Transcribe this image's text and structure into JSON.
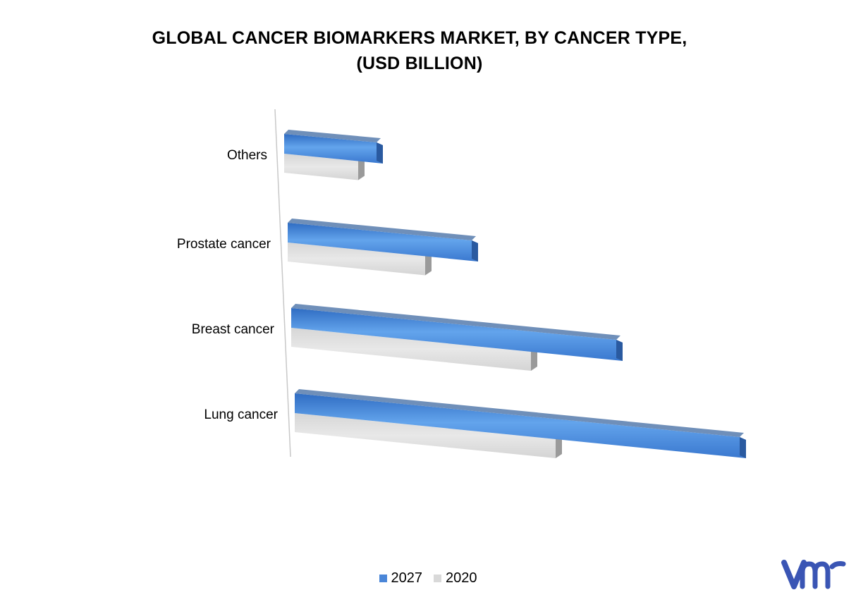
{
  "chart_data": {
    "type": "bar",
    "orientation": "horizontal",
    "title": "GLOBAL CANCER BIOMARKERS MARKET, BY CANCER TYPE,",
    "subtitle": "(USD BILLION)",
    "categories": [
      "Lung cancer",
      "Breast cancer",
      "Prostate cancer",
      "Others"
    ],
    "series": [
      {
        "name": "2027",
        "color": "#4a86d8",
        "values": [
          6.4,
          4.7,
          2.7,
          1.4
        ]
      },
      {
        "name": "2020",
        "color": "#d9d9d9",
        "values": [
          3.7,
          3.4,
          1.95,
          1.05
        ]
      }
    ],
    "xlim": [
      0,
      6.4
    ],
    "grid": false,
    "legend_position": "bottom",
    "style": "3d"
  },
  "logo": {
    "text": "vmr",
    "color": "#3a55b4"
  }
}
